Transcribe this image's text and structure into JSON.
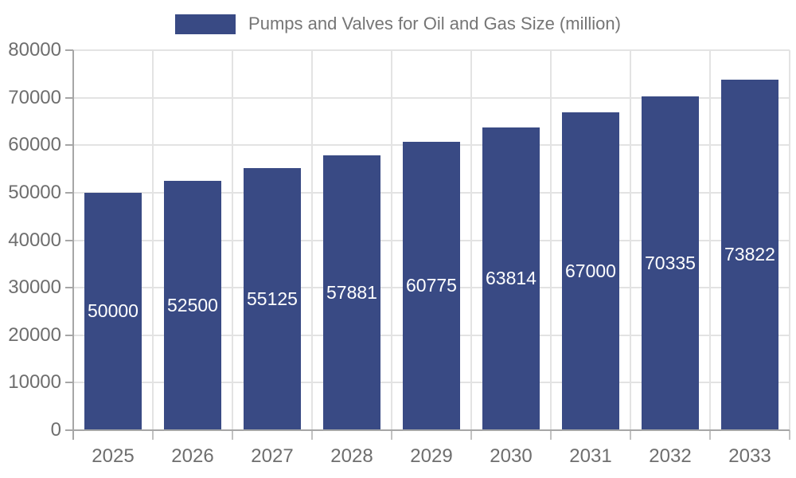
{
  "legend": {
    "label": "Pumps and Valves for Oil and Gas Size (million)"
  },
  "chart_data": {
    "type": "bar",
    "title": "Pumps and Valves for Oil and Gas Size (million)",
    "categories": [
      "2025",
      "2026",
      "2027",
      "2028",
      "2029",
      "2030",
      "2031",
      "2032",
      "2033"
    ],
    "values": [
      50000,
      52500,
      55125,
      57881,
      60775,
      63814,
      67000,
      70335,
      73822
    ],
    "xlabel": "",
    "ylabel": "",
    "ylim": [
      0,
      80000
    ],
    "yticks": [
      0,
      10000,
      20000,
      30000,
      40000,
      50000,
      60000,
      70000,
      80000
    ],
    "grid": true,
    "legend_position": "top-center",
    "bar_color": "#394a84",
    "bar_label_color": "#ffffff",
    "axis_text_color": "#6e6e6e",
    "legend_text_color": "#757575"
  }
}
